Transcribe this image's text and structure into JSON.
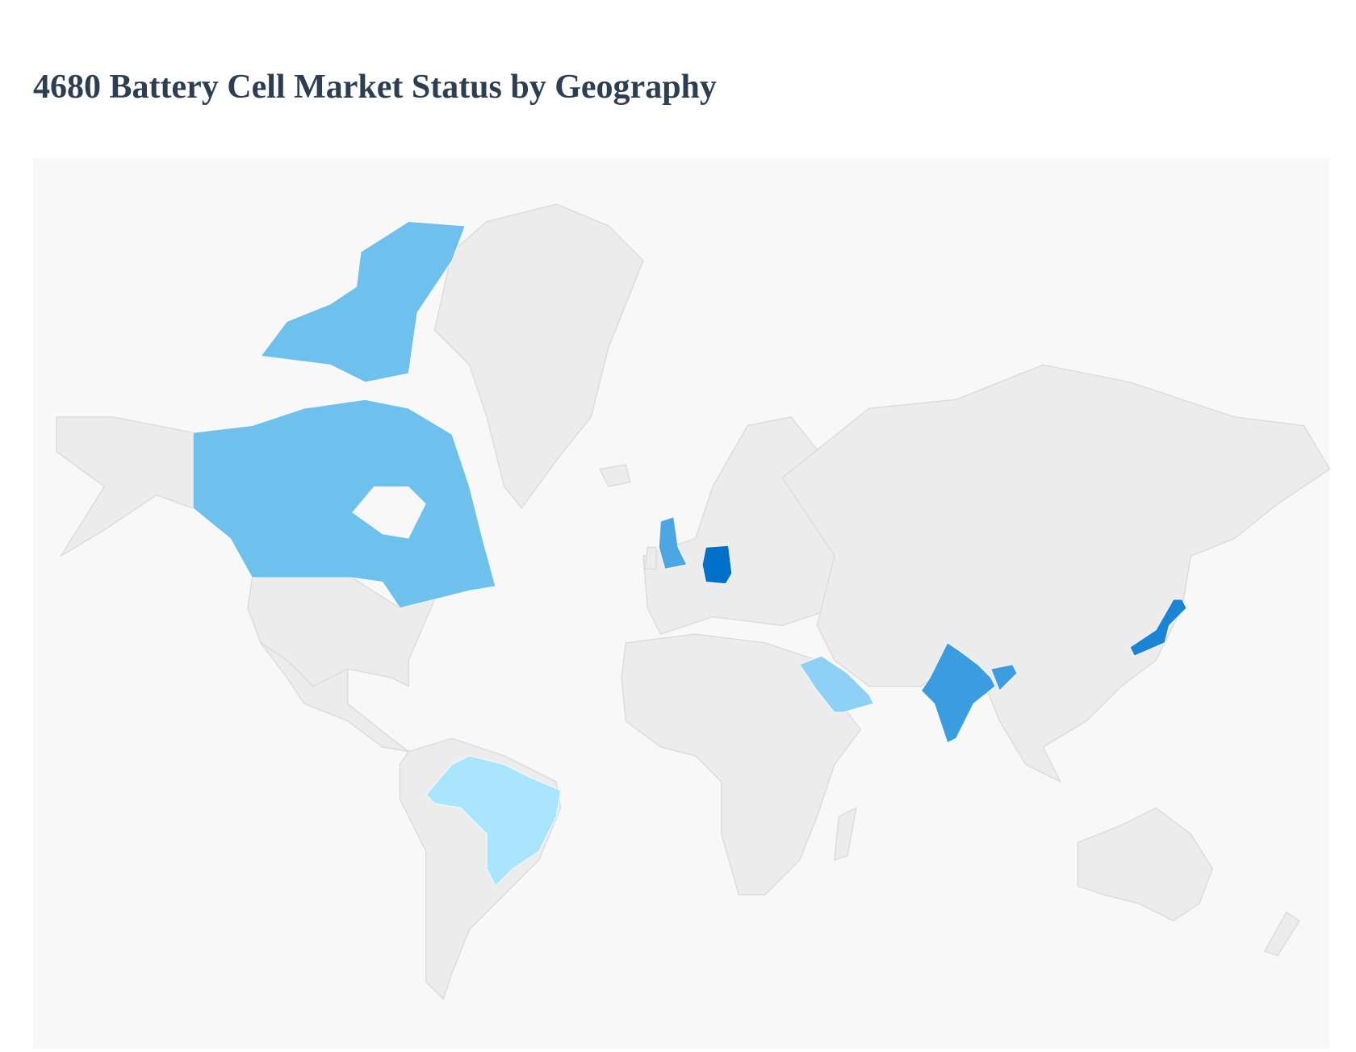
{
  "title": "4680 Battery Cell Market Status by Geography",
  "colors": {
    "background": "#f8f8f8",
    "land": "#ececec",
    "border": "#d9d9d9",
    "title": "#2c3e50"
  },
  "chart_data": {
    "type": "choropleth",
    "title": "4680 Battery Cell Market Status by Geography",
    "legend": "none",
    "highlighted_regions": [
      {
        "country": "Germany",
        "color": "#0070c8"
      },
      {
        "country": "Japan",
        "color": "#1c84d4"
      },
      {
        "country": "India",
        "color": "#3b9de0"
      },
      {
        "country": "United Kingdom",
        "color": "#4ba6e2"
      },
      {
        "country": "Canada",
        "color": "#6fc1ed"
      },
      {
        "country": "Saudi Arabia",
        "color": "#8fd1f5"
      },
      {
        "country": "Brazil",
        "color": "#a9e5fd"
      }
    ]
  }
}
